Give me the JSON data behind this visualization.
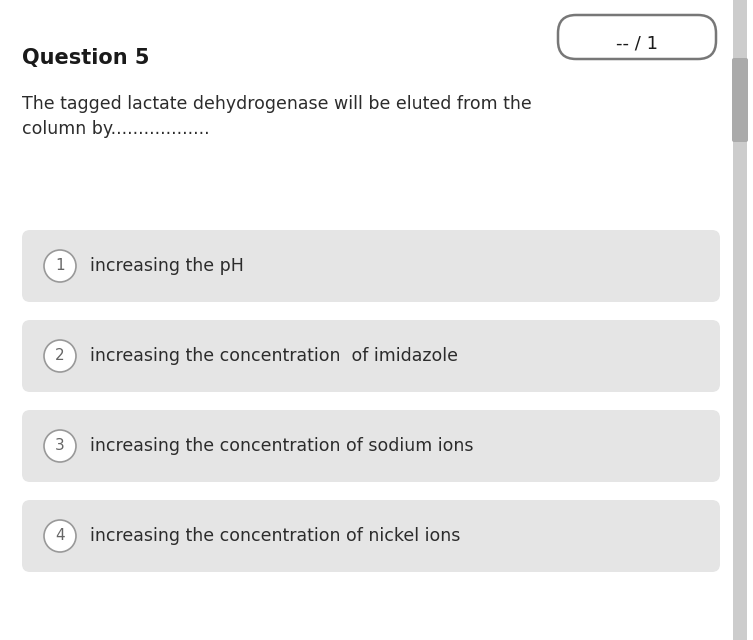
{
  "title": "Question 5",
  "score_badge": "-- / 1",
  "question_text_line1": "The tagged lactate dehydrogenase will be eluted from the",
  "question_text_line2": "column by..................",
  "options": [
    {
      "number": "1",
      "text": "increasing the pH"
    },
    {
      "number": "2",
      "text": "increasing the concentration  of imidazole"
    },
    {
      "number": "3",
      "text": "increasing the concentration of sodium ions"
    },
    {
      "number": "4",
      "text": "increasing the concentration of nickel ions"
    }
  ],
  "bg_color": "#ffffff",
  "option_bg_color": "#e5e5e5",
  "option_text_color": "#2c2c2c",
  "title_color": "#1a1a1a",
  "question_color": "#2c2c2c",
  "badge_border_color": "#777777",
  "circle_border_color": "#999999",
  "circle_text_color": "#666666",
  "scrollbar_color": "#cccccc",
  "scrollhandle_color": "#aaaaaa",
  "title_fontsize": 15,
  "question_fontsize": 12.5,
  "option_fontsize": 12.5,
  "badge_fontsize": 13,
  "number_fontsize": 11
}
